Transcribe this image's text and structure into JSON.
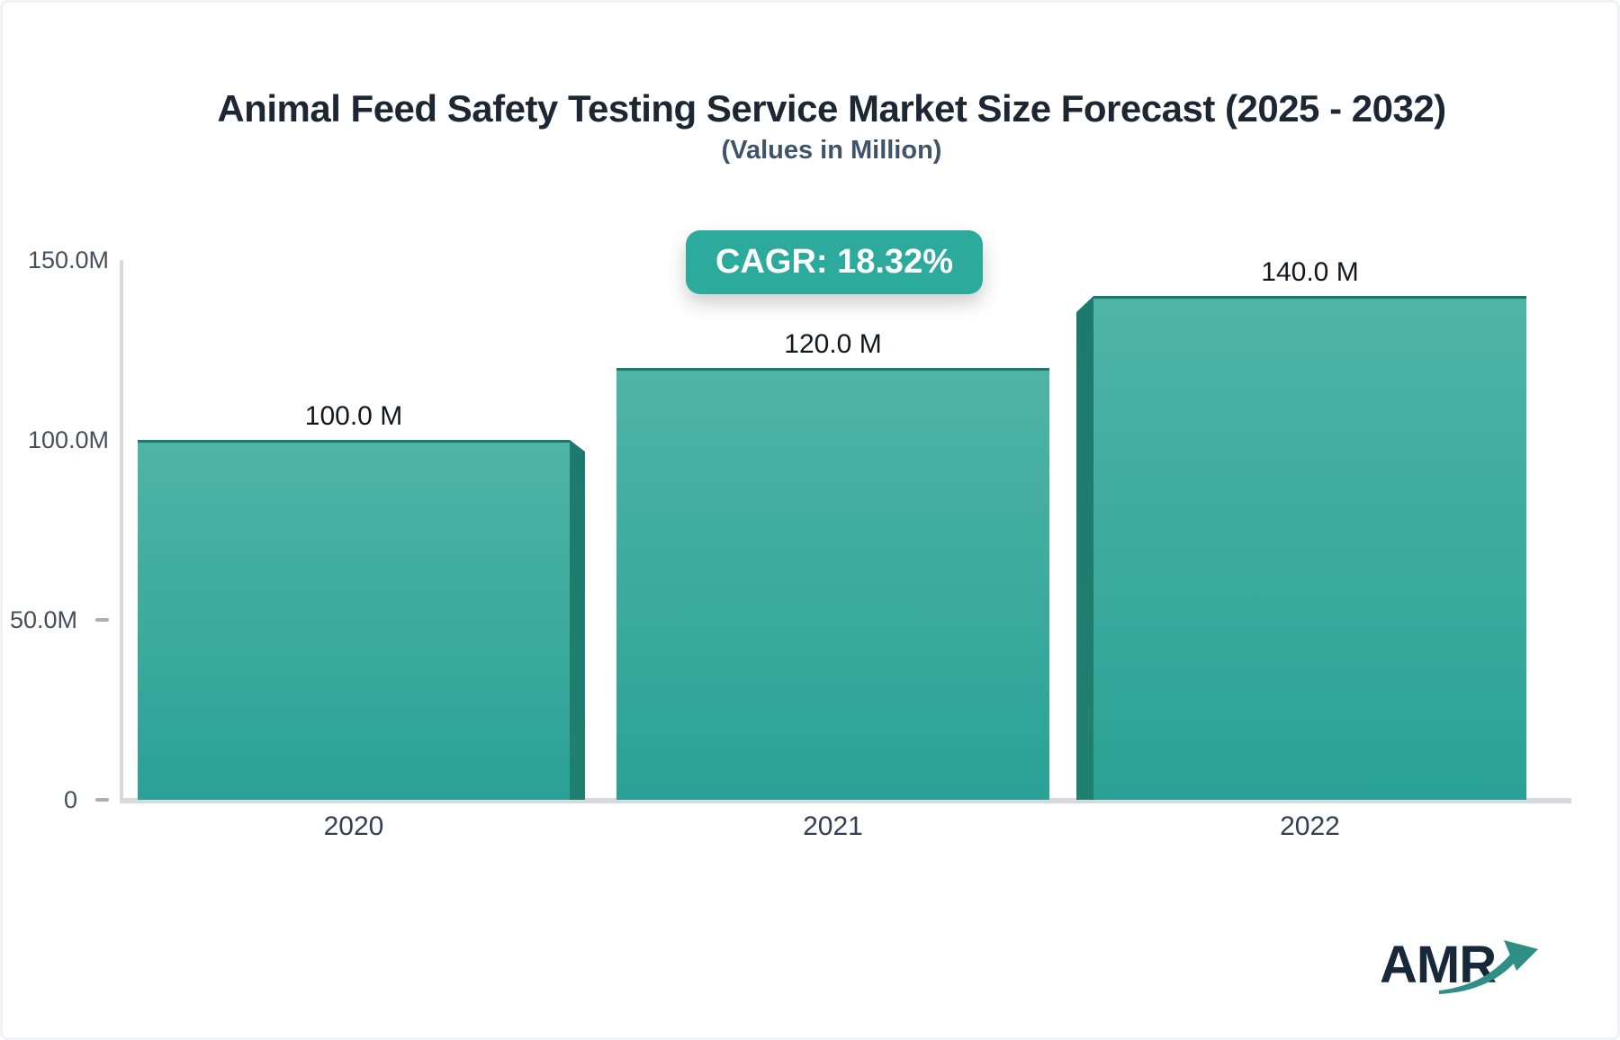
{
  "header": {
    "title": "Animal Feed Safety Testing Service Market Size Forecast (2025 - 2032)",
    "subtitle": "(Values in Million)"
  },
  "badge": {
    "label": "CAGR: 18.32%"
  },
  "logo": {
    "text": "AMR"
  },
  "chart_data": {
    "type": "bar",
    "title": "Animal Feed Safety Testing Service Market Size Forecast (2025 - 2032)",
    "subtitle": "(Values in Million)",
    "annotation": "CAGR: 18.32%",
    "unit": "Million",
    "categories": [
      "2020",
      "2021",
      "2022"
    ],
    "values": [
      100.0,
      120.0,
      140.0
    ],
    "value_labels": [
      "100.0 M",
      "120.0 M",
      "140.0 M"
    ],
    "ylim": [
      0,
      150
    ],
    "grid": false,
    "legend": false,
    "y_axis_ticks": [
      {
        "label": "150.0M",
        "value": 150,
        "dash": false
      },
      {
        "label": "100.0M",
        "value": 100,
        "dash": false
      },
      {
        "label": "50.0M",
        "value": 50,
        "dash": true
      },
      {
        "label": "0",
        "value": 0,
        "dash": true
      }
    ],
    "bar_3d_shade_sides": [
      "right",
      "none",
      "left"
    ]
  },
  "colors": {
    "bar_gradient_top": "#4fb4a6",
    "bar_gradient_bottom": "#2aa295",
    "bar_top_edge": "#177c6f",
    "bar_side_shade": "#20806f",
    "badge_background": "#2caa9c",
    "badge_text": "#ffffff",
    "axis_line": "#d6dade",
    "tick": "#a8afb6",
    "title_text": "#1d2734",
    "subtitle_text": "#3f5468",
    "axis_label_text": "#45505c",
    "category_label_text": "#333f52",
    "value_label_text": "#101820",
    "logo_text": "#16283a",
    "logo_arrow": "#2f8e86"
  }
}
